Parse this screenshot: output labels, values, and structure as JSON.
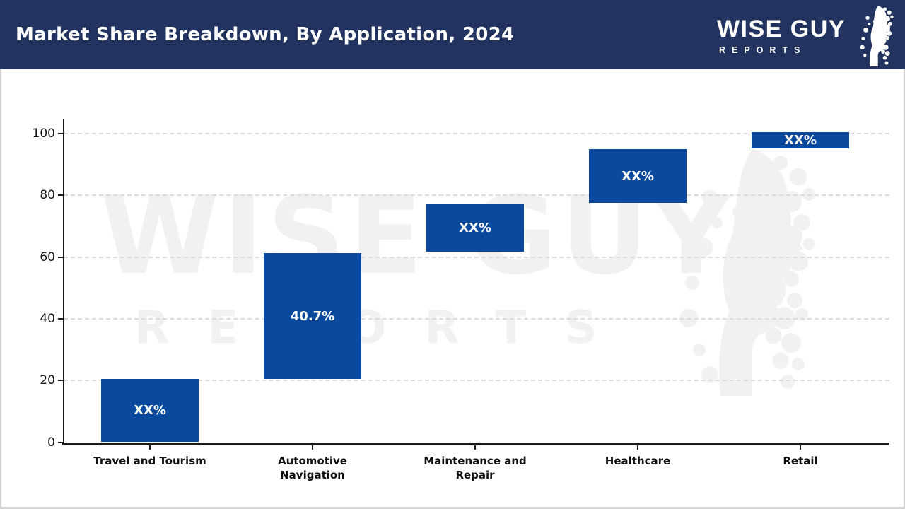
{
  "header": {
    "title": "Market Share Breakdown, By Application, 2024",
    "logo": {
      "name": "WISE GUY",
      "tagline": "REPORTS"
    }
  },
  "watermark": {
    "line1": "WISE GUY",
    "line2": "REPORTS"
  },
  "colors": {
    "header_bg": "#21335E",
    "bar": "#0A4A9E",
    "bar_label": "#FFFFFF",
    "grid": "#DCDCDC",
    "axis": "#1A1A1A",
    "watermark": "#F1F1F3"
  },
  "chart_data": {
    "type": "bar",
    "subtype": "floating-segment-waterfall",
    "title": "Market Share Breakdown, By Application, 2024",
    "categories": [
      "Travel and Tourism",
      "Automotive Navigation",
      "Maintenance and Repair",
      "Healthcare",
      "Retail"
    ],
    "categories_lines": [
      [
        "Travel and Tourism"
      ],
      [
        "Automotive",
        "Navigation"
      ],
      [
        "Maintenance and",
        "Repair"
      ],
      [
        "Healthcare"
      ],
      [
        "Retail"
      ]
    ],
    "segments": [
      {
        "category": "Travel and Tourism",
        "from": 0,
        "to": 20.5,
        "value_label": "XX%"
      },
      {
        "category": "Automotive Navigation",
        "from": 20.5,
        "to": 61.2,
        "value_label": "40.7%"
      },
      {
        "category": "Maintenance and Repair",
        "from": 61.7,
        "to": 77.3,
        "value_label": "XX%"
      },
      {
        "category": "Healthcare",
        "from": 77.6,
        "to": 94.9,
        "value_label": "XX%"
      },
      {
        "category": "Retail",
        "from": 95.2,
        "to": 100.5,
        "value_label": "XX%"
      }
    ],
    "yticks": [
      0,
      20,
      40,
      60,
      80,
      100
    ],
    "ylim": [
      0,
      105
    ],
    "xlabel": "",
    "ylabel": "",
    "grid": "horizontal-dashed",
    "legend": "none"
  }
}
